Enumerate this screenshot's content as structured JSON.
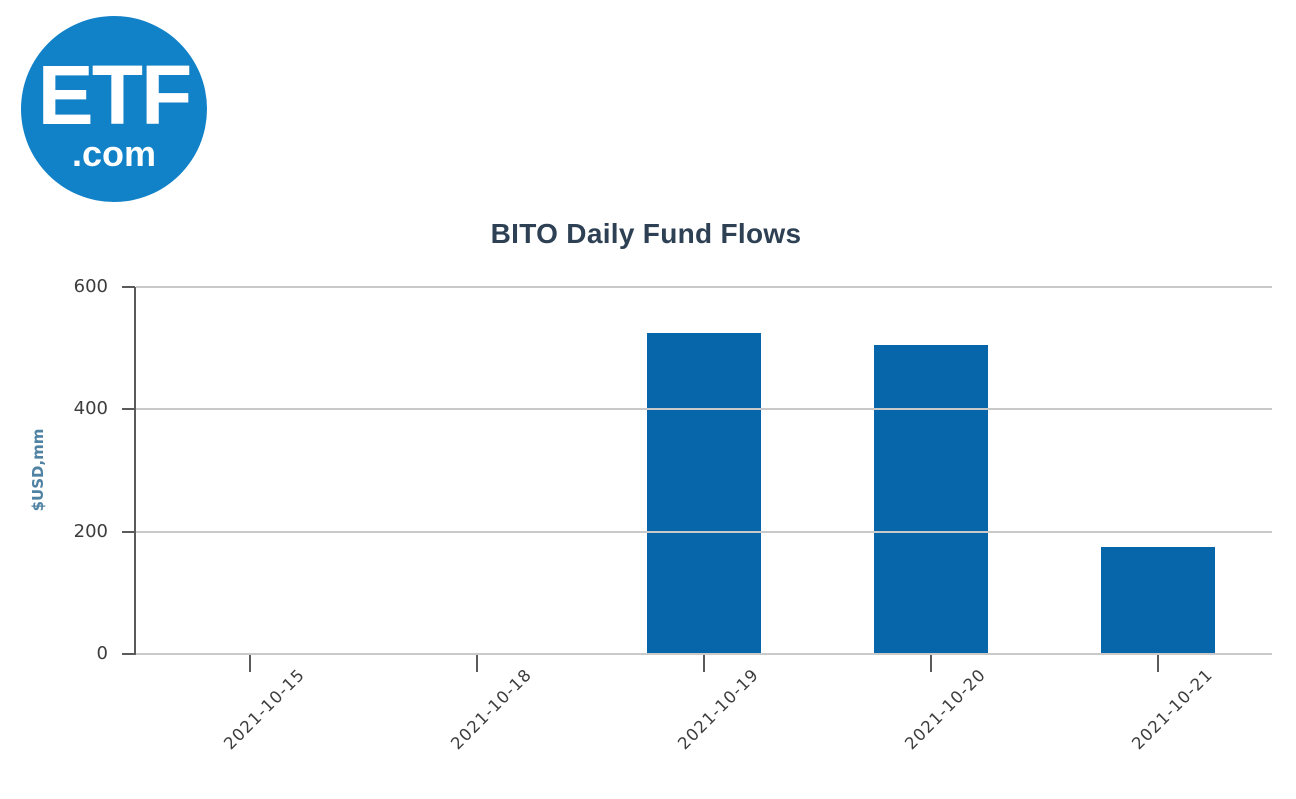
{
  "logo": {
    "text": "ETF",
    "subtext": ".com",
    "background_color": "#1181c8",
    "text_color": "#ffffff"
  },
  "chart_data": {
    "type": "bar",
    "title": "BITO Daily Fund Flows",
    "xlabel": "",
    "ylabel": "$USD,mm",
    "categories": [
      "2021-10-15",
      "2021-10-18",
      "2021-10-19",
      "2021-10-20",
      "2021-10-21"
    ],
    "values": [
      0,
      0,
      525,
      505,
      175
    ],
    "yticks": [
      0,
      200,
      400,
      600
    ],
    "ylim": [
      0,
      600
    ],
    "grid": true,
    "legend_position": "none",
    "colors": {
      "bar": "#0766a9",
      "title_text": "#2e4154",
      "ylabel_text": "#4f82a3",
      "tick_text": "#3d3d3d",
      "gridline": "#c9c9c9",
      "axis": "#5a5a5a"
    }
  }
}
